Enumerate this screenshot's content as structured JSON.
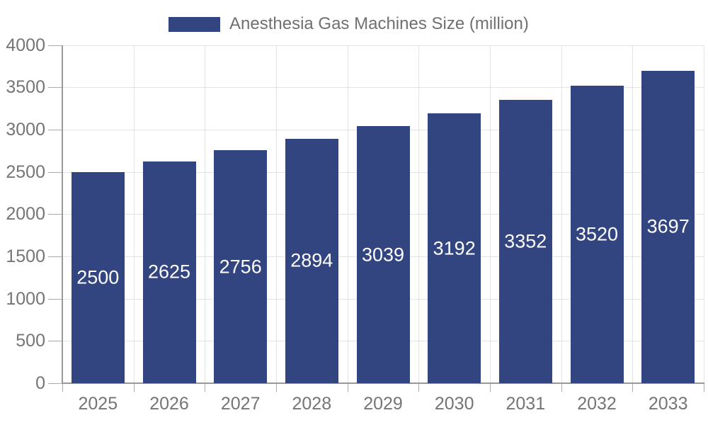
{
  "chart_data": {
    "type": "bar",
    "title": "Anesthesia Gas Machines Size (million)",
    "categories": [
      "2025",
      "2026",
      "2027",
      "2028",
      "2029",
      "2030",
      "2031",
      "2032",
      "2033"
    ],
    "values": [
      2500,
      2625,
      2756,
      2894,
      3039,
      3192,
      3352,
      3520,
      3697
    ],
    "xlabel": "",
    "ylabel": "",
    "ylim": [
      0,
      4000
    ],
    "ytick_step": 500,
    "yticks": [
      0,
      500,
      1000,
      1500,
      2000,
      2500,
      3000,
      3500,
      4000
    ],
    "grid": true,
    "bar_labels_inside": true,
    "legend": {
      "position": "top-center",
      "entries": [
        "Anesthesia Gas Machines Size (million)"
      ]
    }
  },
  "colors": {
    "bar": "#334580",
    "bar_label": "#ffffff",
    "axis_line": "#999999",
    "tick_line": "#aaaaaa",
    "grid_line": "#e3e3e3",
    "tick_label": "#757575",
    "legend_text": "#707070",
    "background": "#ffffff"
  }
}
